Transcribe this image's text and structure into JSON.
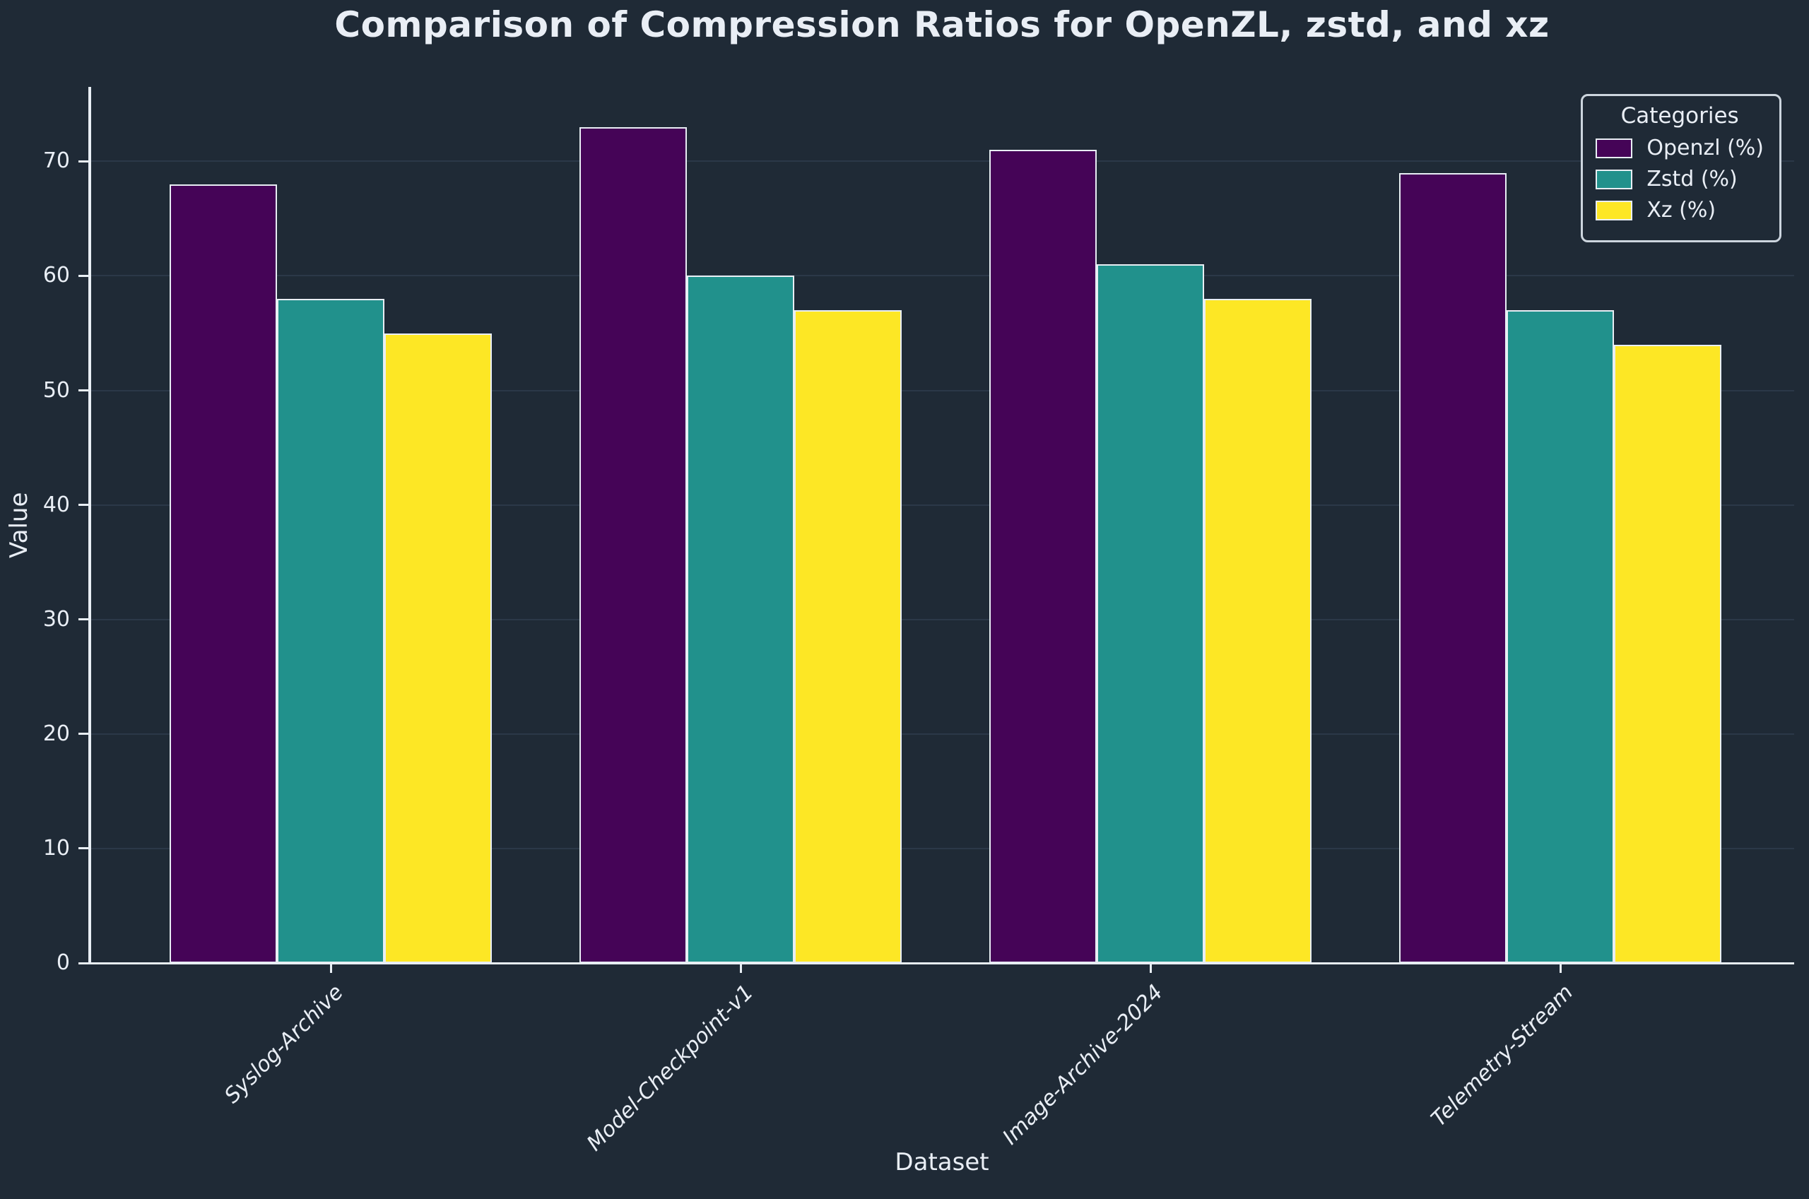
{
  "chart_data": {
    "type": "bar",
    "title": "Comparison of Compression Ratios for OpenZL, zstd, and xz",
    "xlabel": "Dataset",
    "ylabel": "Value",
    "categories": [
      "Syslog-Archive",
      "Model-Checkpoint-v1",
      "Image-Archive-2024",
      "Telemetry-Stream"
    ],
    "series": [
      {
        "name": "Openzl (%)",
        "color": "#450457",
        "values": [
          68,
          73,
          71,
          69
        ]
      },
      {
        "name": "Zstd (%)",
        "color": "#21918c",
        "values": [
          58,
          60,
          61,
          57
        ]
      },
      {
        "name": "Xz (%)",
        "color": "#fde725",
        "values": [
          55,
          57,
          58,
          54
        ]
      }
    ],
    "yticks": [
      0,
      10,
      20,
      30,
      40,
      50,
      60,
      70
    ],
    "ylim": [
      0,
      76.5
    ],
    "grid": true,
    "legend": {
      "title": "Categories",
      "position": "top-right"
    }
  },
  "colors": {
    "background": "#1f2a36",
    "text": "#e9eef5",
    "grid": "#2b3848",
    "bar_edge": "#e8eef4"
  }
}
